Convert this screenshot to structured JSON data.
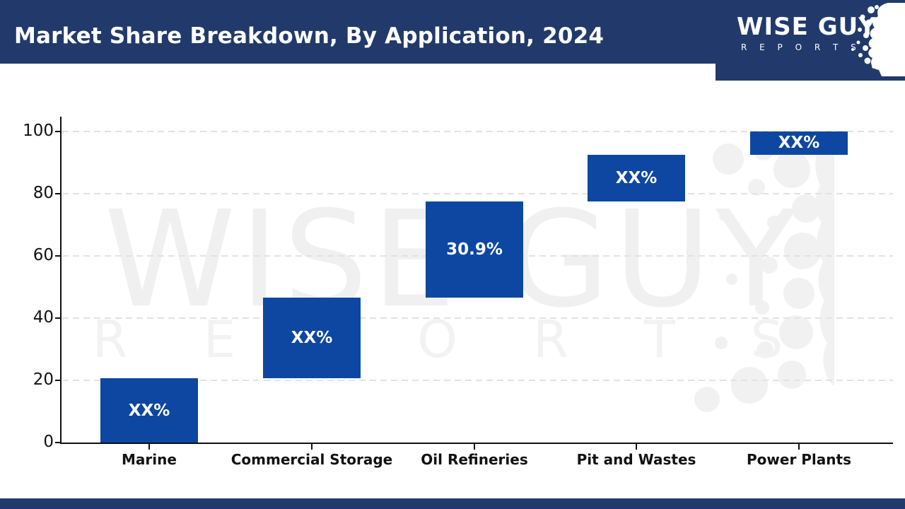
{
  "header": {
    "title": "Market Share Breakdown, By Application, 2024",
    "logo": {
      "name": "WISE GUY",
      "sub": "R E P O R T S"
    }
  },
  "watermark": {
    "line1": "WISE GUY",
    "line2": "R E P O R T S"
  },
  "colors": {
    "header_bg": "#213a6b",
    "footer_bg": "#213a6b",
    "bar": "#0d47a1",
    "bar_label_text": "#ffffff",
    "grid": "#e2e2e2",
    "axis": "#111111",
    "watermark": "#f0f0f0"
  },
  "chart_data": {
    "type": "bar",
    "subtype": "waterfall-stepped",
    "title": "Market Share Breakdown, By Application, 2024",
    "categories": [
      "Marine",
      "Commercial Storage",
      "Oil Refineries",
      "Pit and Wastes",
      "Power Plants"
    ],
    "segments": [
      {
        "category": "Marine",
        "start": 0.0,
        "end": 20.6,
        "label": "XX%"
      },
      {
        "category": "Commercial Storage",
        "start": 20.6,
        "end": 46.5,
        "label": "XX%"
      },
      {
        "category": "Oil Refineries",
        "start": 46.5,
        "end": 77.4,
        "label": "30.9%"
      },
      {
        "category": "Pit and Wastes",
        "start": 77.4,
        "end": 92.6,
        "label": "XX%"
      },
      {
        "category": "Power Plants",
        "start": 92.6,
        "end": 100.0,
        "label": "XX%"
      }
    ],
    "known_values": {
      "Oil Refineries": 30.9
    },
    "xlabel": "",
    "ylabel": "",
    "ylim": [
      0,
      100
    ],
    "yticks": [
      0,
      20,
      40,
      60,
      80,
      100
    ],
    "grid": "horizontal-dashed",
    "legend": "none"
  }
}
